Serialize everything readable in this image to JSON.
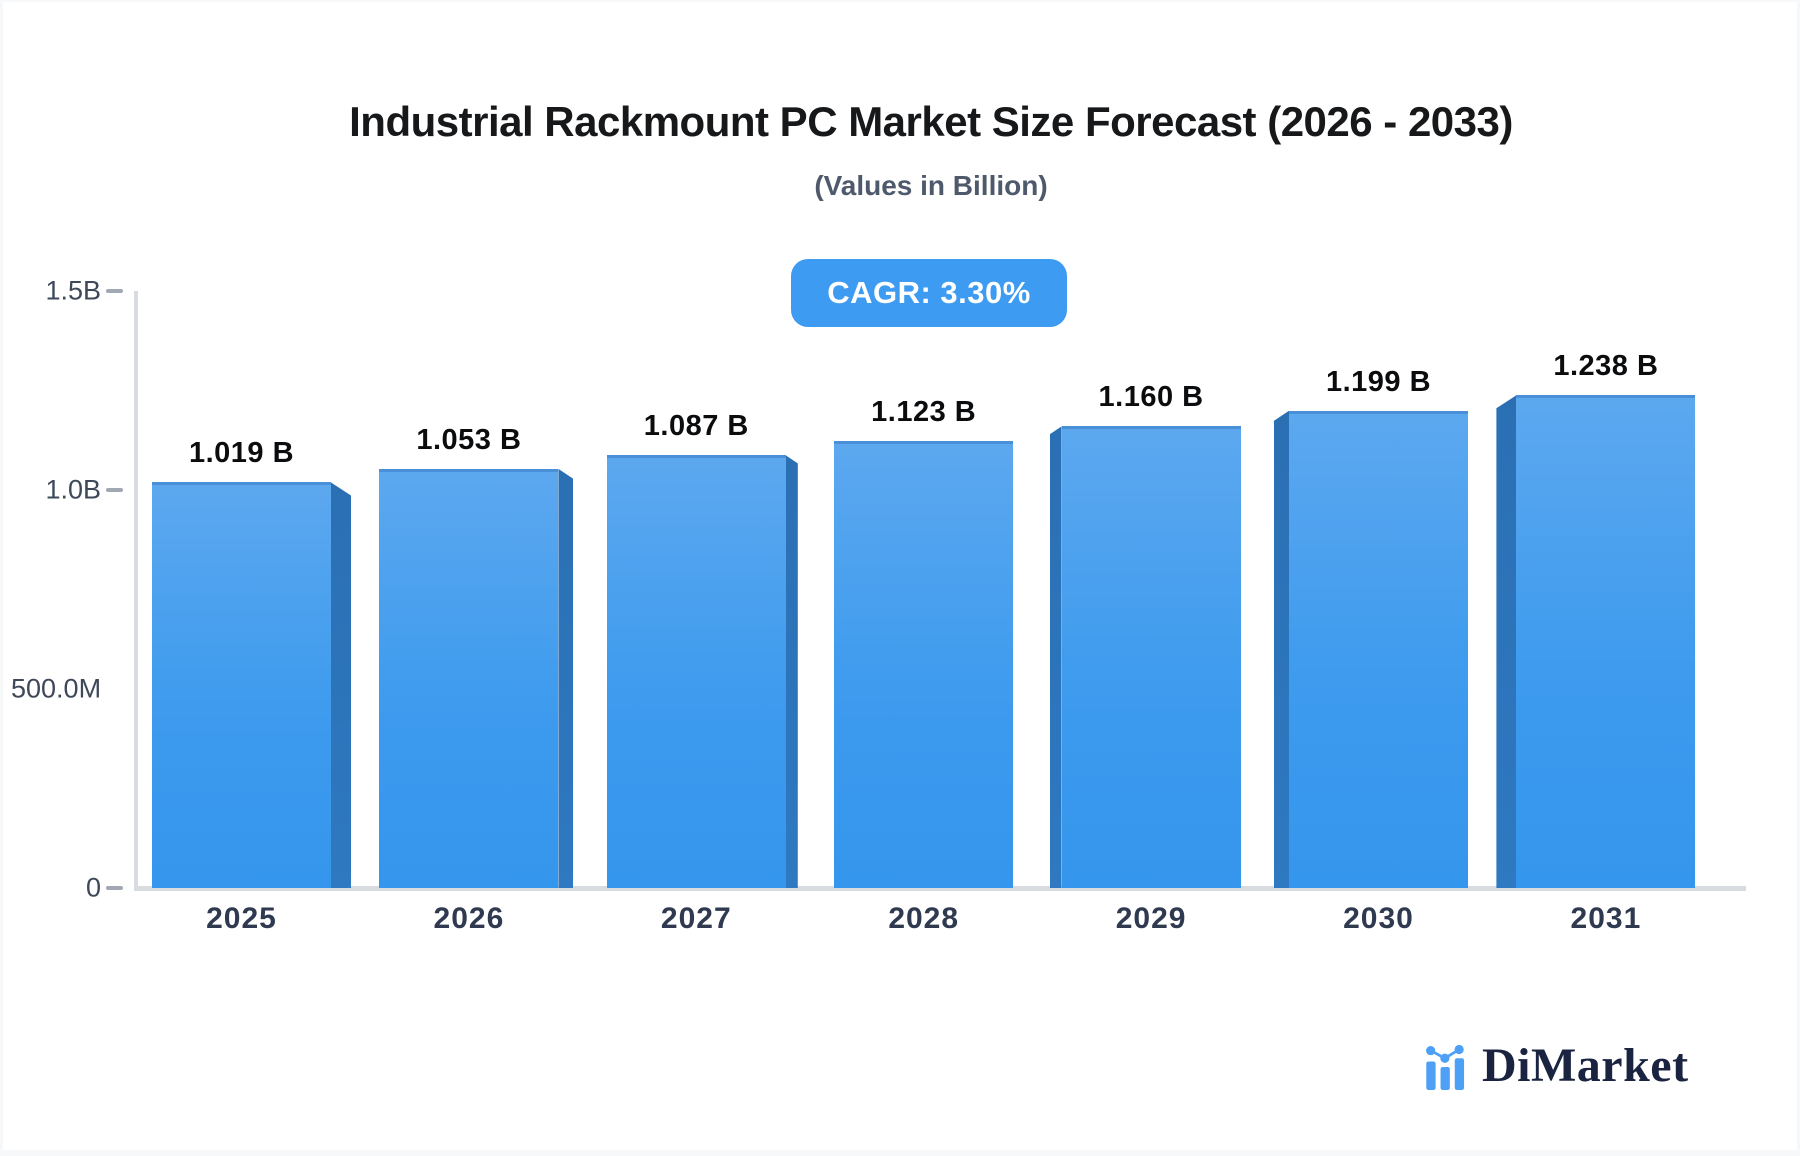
{
  "chart_data": {
    "type": "bar",
    "title": "Industrial Rackmount PC Market Size Forecast (2026 - 2033)",
    "subtitle": "(Values in Billion)",
    "categories": [
      "2025",
      "2026",
      "2027",
      "2028",
      "2029",
      "2030",
      "2031"
    ],
    "values": [
      1.019,
      1.053,
      1.087,
      1.123,
      1.16,
      1.199,
      1.238
    ],
    "value_labels": [
      "1.019 B",
      "1.053 B",
      "1.087 B",
      "1.123 B",
      "1.160 B",
      "1.199 B",
      "1.238 B"
    ],
    "unit": "Billion",
    "ylim": [
      0,
      1.5
    ],
    "yticks": [
      {
        "label": "1.5B",
        "value": 1.5,
        "dash": true
      },
      {
        "label": "1.0B",
        "value": 1.0,
        "dash": true
      },
      {
        "label": "500.0M",
        "value": 0.5,
        "dash": false
      },
      {
        "label": "0",
        "value": 0.0,
        "dash": true
      }
    ],
    "grid": false,
    "legend": "none",
    "bar_style_3d": true
  },
  "badge": {
    "label": "CAGR: 3.30%"
  },
  "logo": {
    "text": "DiMarket"
  },
  "colors": {
    "badge_bg": "#3d9bf2",
    "bar_top": "#5ca8ef",
    "bar_bottom": "#3496ec",
    "bar_side": "#2e77bd",
    "axis_line": "#d8dce1",
    "tick_dash": "#a2a8b3",
    "title_text": "#17181a",
    "subtitle_text": "#4e5a6b",
    "year_text": "#2f3a50",
    "value_text": "#0b0c0e",
    "logo_text": "#1a2440",
    "logo_blue": "#4da0f6"
  }
}
